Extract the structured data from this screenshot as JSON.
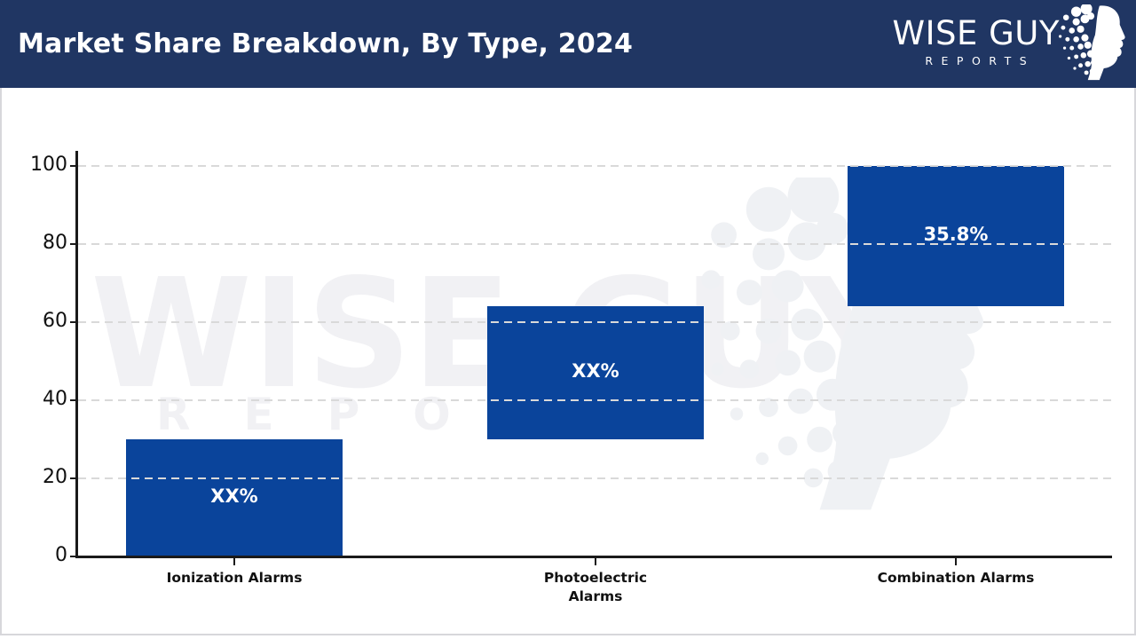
{
  "header": {
    "title": "Market Share Breakdown, By Type, 2024",
    "logo_line1": "WISE GUY",
    "logo_line2": "REPORTS"
  },
  "watermark": {
    "line1": "WISE GUY",
    "line2": "REPORTS"
  },
  "chart_data": {
    "type": "bar",
    "subtype": "waterfall",
    "title": "Market Share Breakdown, By Type, 2024",
    "categories": [
      "Ionization Alarms",
      "Photoelectric\nAlarms",
      "Combination Alarms"
    ],
    "segments": [
      {
        "category": "Ionization Alarms",
        "start": 0,
        "end": 30,
        "label": "XX%"
      },
      {
        "category": "Photoelectric Alarms",
        "start": 30,
        "end": 64.2,
        "label": "XX%"
      },
      {
        "category": "Combination Alarms",
        "start": 64.2,
        "end": 100,
        "label": "35.8%"
      }
    ],
    "series": [
      {
        "name": "Market Share",
        "values": [
          30,
          34.2,
          35.8
        ]
      }
    ],
    "bar_labels": [
      "XX%",
      "XX%",
      "35.8%"
    ],
    "yticks": [
      0,
      20,
      40,
      60,
      80,
      100
    ],
    "ylim": [
      0,
      100
    ],
    "xlabel": "",
    "ylabel": "",
    "legend": "none",
    "grid": "horizontal-dashed",
    "colors": {
      "bar": "#0a449b",
      "bar_label": "#ffffff",
      "grid": "#d9d9d9",
      "axis": "#1a1a1a",
      "header_bg": "#203663"
    }
  }
}
